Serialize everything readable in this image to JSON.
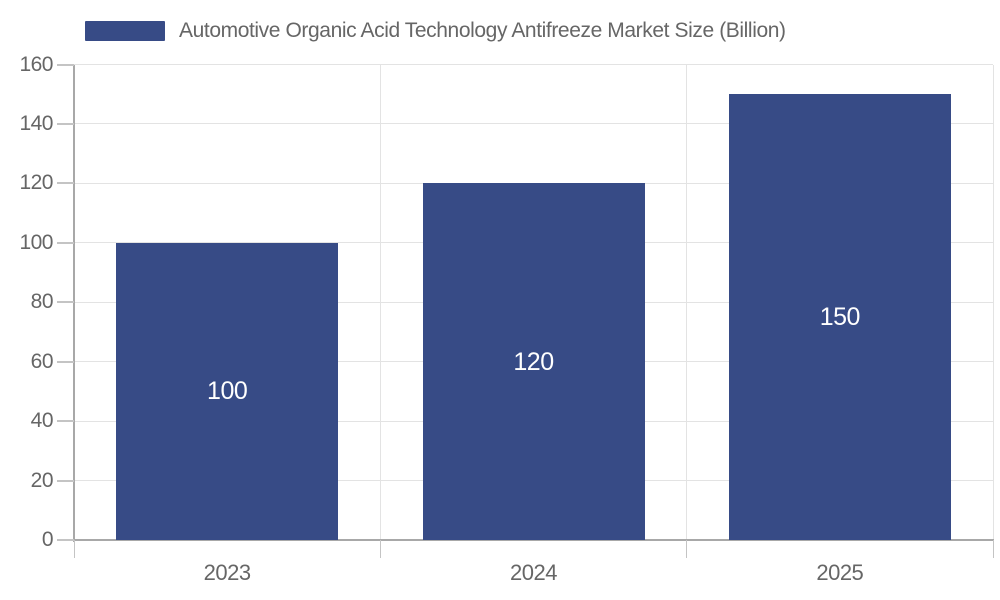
{
  "chart_data": {
    "type": "bar",
    "title": "Automotive Organic Acid Technology Antifreeze Market Size (Billion)",
    "legend": "Automotive Organic Acid Technology Antifreeze Market Size (Billion)",
    "legend_position": "top",
    "categories": [
      "2023",
      "2024",
      "2025"
    ],
    "values": [
      100,
      120,
      150
    ],
    "bar_value_labels": [
      "100",
      "120",
      "150"
    ],
    "xlabel": "",
    "ylabel": "",
    "ylim": [
      0,
      160
    ],
    "yticks": [
      0,
      20,
      40,
      60,
      80,
      100,
      120,
      140,
      160
    ],
    "grid": true,
    "colors": {
      "bar": "#374b86",
      "bar_label_text": "#ffffff",
      "gridline": "#e3e3e3",
      "axis": "#a8a8a8",
      "tick": "#c4c4c4",
      "axis_text": "#666666",
      "legend_text": "#666666",
      "background": "#ffffff"
    }
  }
}
